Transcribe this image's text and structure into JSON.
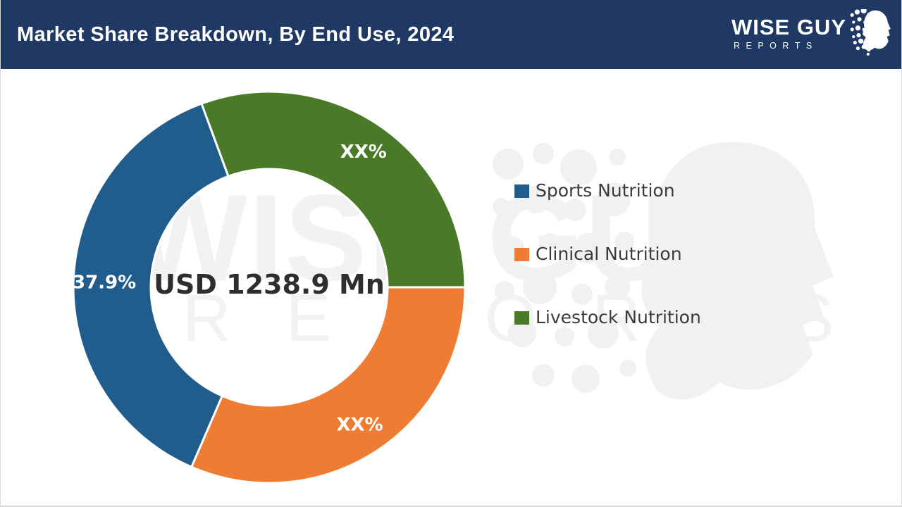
{
  "header": {
    "title": "Market Share Breakdown, By End Use, 2024"
  },
  "logo": {
    "line1": "WISE GUY",
    "line2": "REPORTS"
  },
  "watermark": {
    "line1": "WISE GUY",
    "line2": "R E P O R T S"
  },
  "chart_data": {
    "type": "pie",
    "subtype": "donut",
    "title": "Market Share Breakdown, By End Use, 2024",
    "center_label": "USD 1238.9 Mn",
    "start_angle_deg": 110.2,
    "direction": "counterclockwise",
    "hole_ratio": 0.6,
    "legend_position": "right",
    "slices": [
      {
        "name": "Sports Nutrition",
        "value_pct": 37.9,
        "display_label": "37.9%",
        "color": "#205C8C"
      },
      {
        "name": "Clinical Nutrition",
        "value_pct": 31.5,
        "display_label": "XX%",
        "color": "#EE7D33"
      },
      {
        "name": "Livestock Nutrition",
        "value_pct": 30.6,
        "display_label": "XX%",
        "color": "#4A7A28"
      }
    ]
  },
  "colors": {
    "header_bg": "#1F3864",
    "content_bg": "#FFFFFF",
    "watermark": "#F2F2F4",
    "center_text": "#2E2E2E",
    "legend_text": "#3A3A3A"
  }
}
